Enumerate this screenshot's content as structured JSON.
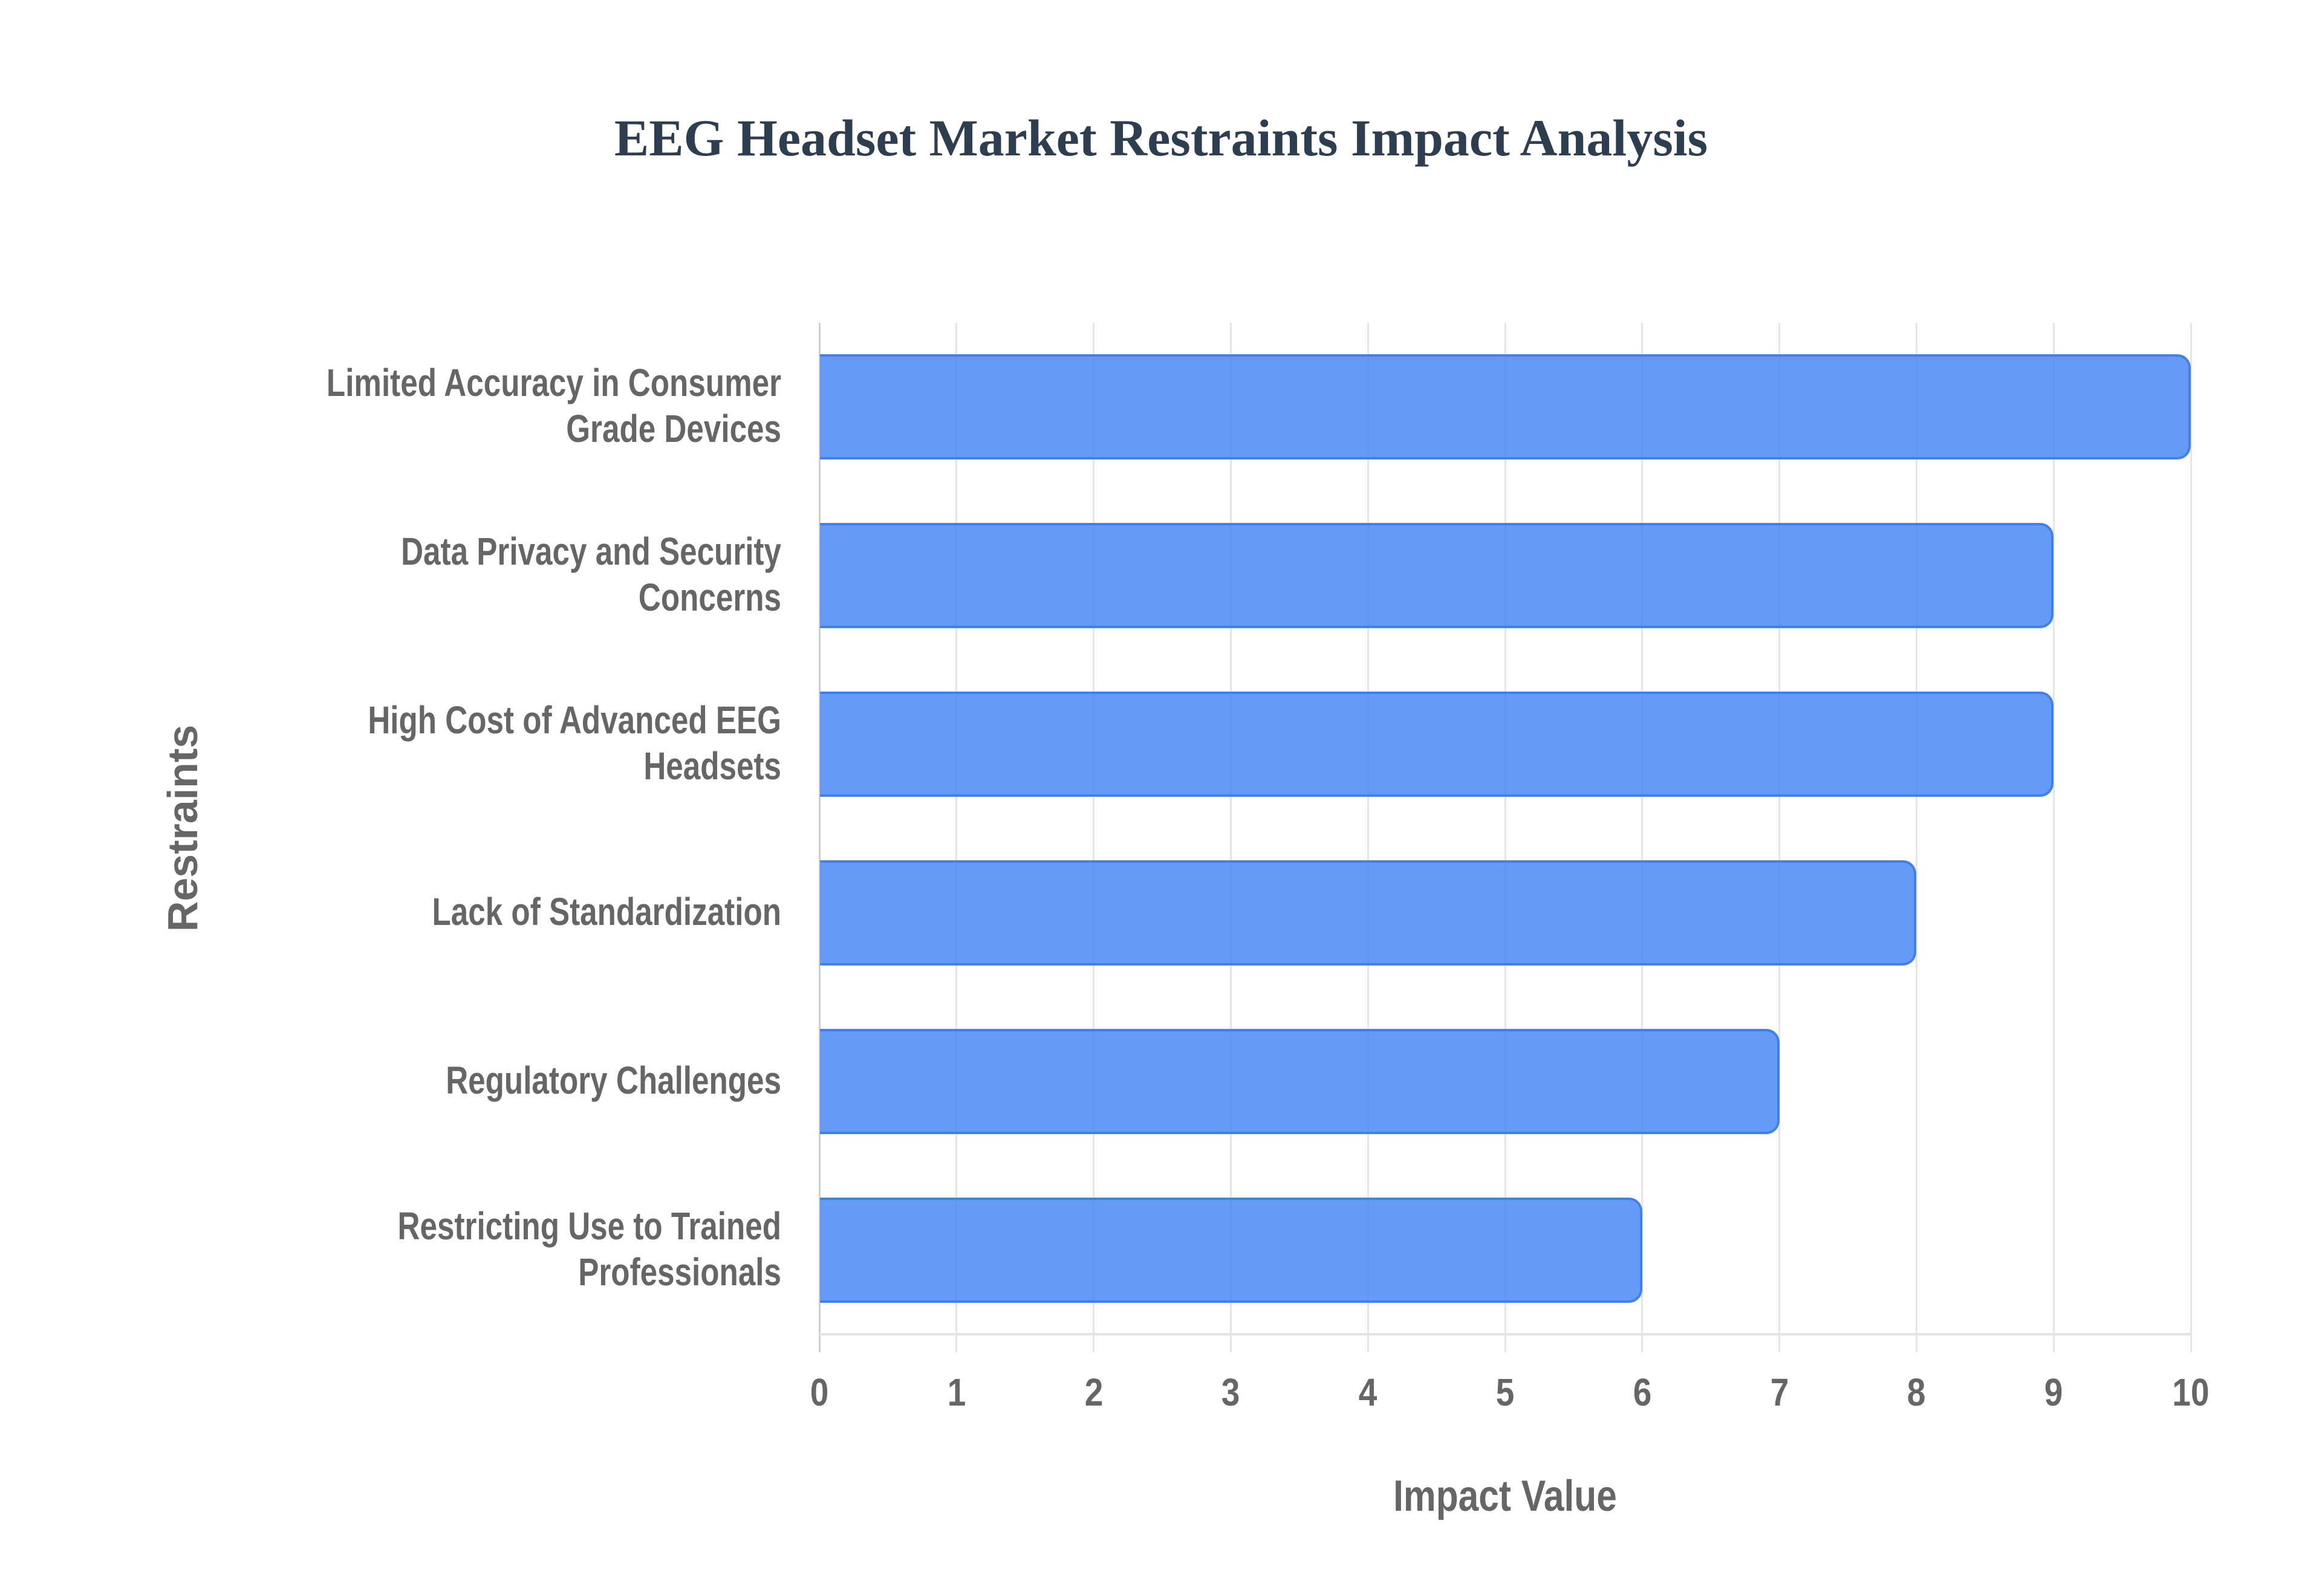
{
  "chart_data": {
    "type": "bar",
    "orientation": "horizontal",
    "title": "EEG Headset Market Restraints Impact Analysis",
    "xlabel": "Impact Value",
    "ylabel": "Restraints",
    "categories": [
      "Limited Accuracy in Consumer Grade Devices",
      "Data Privacy and Security Concerns",
      "High Cost of Advanced EEG Headsets",
      "Lack of Standardization",
      "Regulatory Challenges",
      "Restricting Use to Trained Professionals"
    ],
    "category_lines": [
      [
        "Limited Accuracy in Consumer",
        "Grade Devices"
      ],
      [
        "Data Privacy and Security",
        "Concerns"
      ],
      [
        "High Cost of Advanced EEG",
        "Headsets"
      ],
      [
        "Lack of Standardization"
      ],
      [
        "Regulatory Challenges"
      ],
      [
        "Restricting Use to Trained",
        "Professionals"
      ]
    ],
    "values": [
      10,
      9,
      9,
      8,
      7,
      6
    ],
    "xlim": [
      0,
      10
    ],
    "xticks": [
      "0",
      "1",
      "2",
      "3",
      "4",
      "5",
      "6",
      "7",
      "8",
      "9",
      "10"
    ],
    "grid": true,
    "legend": null,
    "bar_color": "#4285F4",
    "bar_border_color": "#3F7FEE"
  },
  "colors": {
    "title": "#2C3E50",
    "axis_text": "#666666",
    "grid": "#E6E6E6"
  }
}
